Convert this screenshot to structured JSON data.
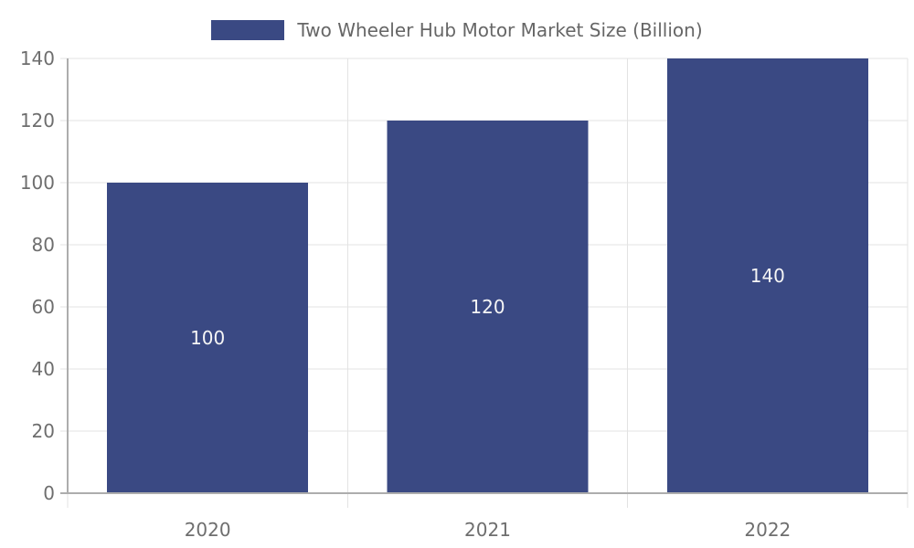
{
  "chart_data": {
    "type": "bar",
    "title": "Two Wheeler Hub Motor Market Size (Billion)",
    "categories": [
      "2020",
      "2021",
      "2022"
    ],
    "series": [
      {
        "name": "Two Wheeler Hub Motor Market Size (Billion)",
        "values": [
          100,
          120,
          140
        ]
      }
    ],
    "bar_value_labels": [
      "100",
      "120",
      "140"
    ],
    "xlabel": "",
    "ylabel": "",
    "ylim": [
      0,
      140
    ],
    "yticks": [
      0,
      20,
      40,
      60,
      80,
      100,
      120,
      140
    ],
    "grid": true,
    "legend_position": "top-center",
    "colors": {
      "bar": "#3A4983",
      "axis": "#ADADAD",
      "grid": "#E3E3E3",
      "tick_label": "#6E6E6E",
      "legend_text": "#666666",
      "bar_label": "#F5F5F5",
      "background": "#FFFFFF"
    }
  }
}
